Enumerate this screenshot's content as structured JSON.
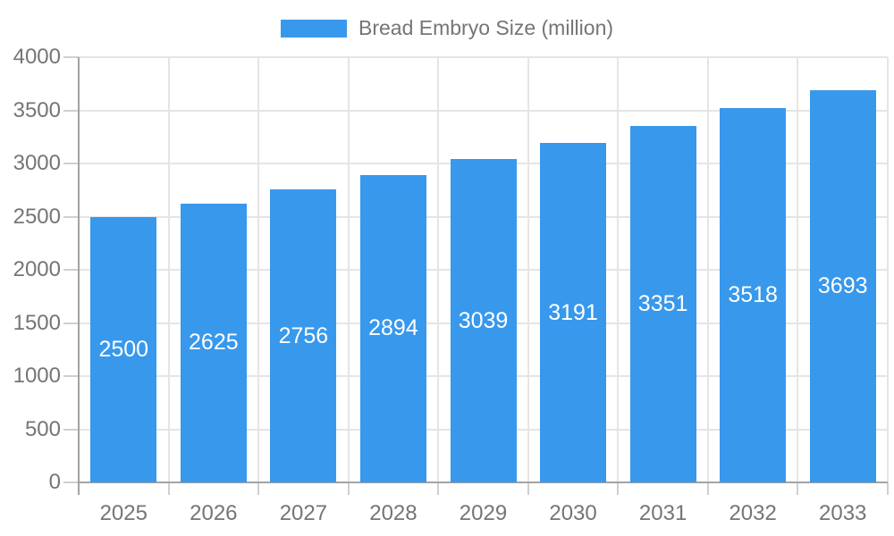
{
  "chart_data": {
    "type": "bar",
    "title": "Bread Embryo Size (million)",
    "categories": [
      "2025",
      "2026",
      "2027",
      "2028",
      "2029",
      "2030",
      "2031",
      "2032",
      "2033"
    ],
    "series": [
      {
        "name": "Bread Embryo Size (million)",
        "values": [
          2500,
          2625,
          2756,
          2894,
          3039,
          3191,
          3351,
          3518,
          3693
        ]
      }
    ],
    "xlabel": "",
    "ylabel": "",
    "ylim": [
      0,
      4000
    ],
    "yticks": [
      0,
      500,
      1000,
      1500,
      2000,
      2500,
      3000,
      3500,
      4000
    ],
    "grid": true,
    "legend_position": "top",
    "bar_value_labels_inside": true
  },
  "legend": {
    "label": "Bread Embryo Size (million)"
  },
  "colors": {
    "bar": "#3898EC",
    "bar_label": "#FFFFFF",
    "axis_text": "#757575",
    "grid_line": "#E5E5E5",
    "tick_line": "#CFCFCF",
    "axis_line": "#A3A3A3",
    "legend_text": "#757575"
  }
}
